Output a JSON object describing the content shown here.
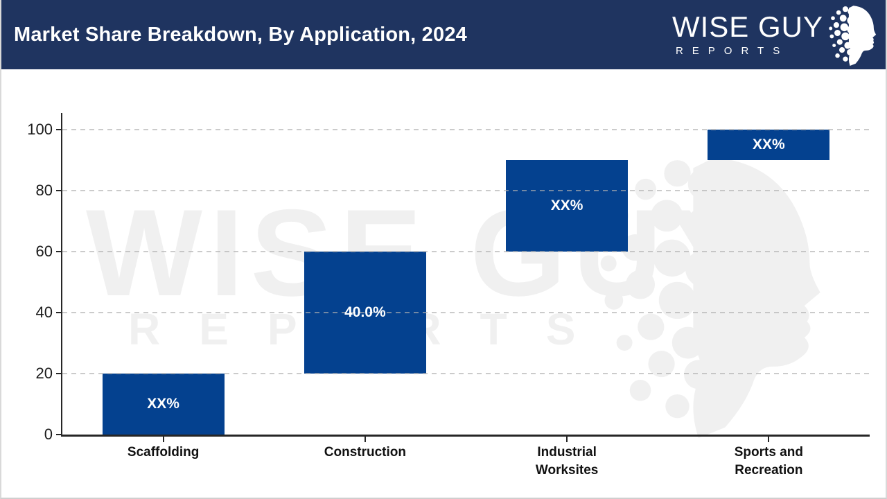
{
  "header": {
    "title": "Market Share Breakdown, By Application, 2024",
    "logo": {
      "line1": "WISE GUY",
      "line2": "REPORTS"
    }
  },
  "watermark": {
    "line1": "WISE GUY",
    "line2": "REPORTS"
  },
  "chart_data": {
    "type": "bar",
    "subtype": "waterfall",
    "title": "Market Share Breakdown, By Application, 2024",
    "categories": [
      "Scaffolding",
      "Construction",
      "Industrial Worksites",
      "Sports and Recreation"
    ],
    "category_label_lines": [
      [
        "Scaffolding"
      ],
      [
        "Construction"
      ],
      [
        "Industrial",
        "Worksites"
      ],
      [
        "Sports and",
        "Recreation"
      ]
    ],
    "bars": [
      {
        "category": "Scaffolding",
        "start": 0,
        "end": 20,
        "label": "XX%"
      },
      {
        "category": "Construction",
        "start": 20,
        "end": 60,
        "label": "40.0%"
      },
      {
        "category": "Industrial Worksites",
        "start": 60,
        "end": 90,
        "label": "XX%"
      },
      {
        "category": "Sports and Recreation",
        "start": 90,
        "end": 100,
        "label": "XX%"
      }
    ],
    "yticks": [
      0,
      20,
      40,
      60,
      80,
      100
    ],
    "ylim": [
      0,
      105
    ],
    "xlabel": "",
    "ylabel": "",
    "grid": "horizontal-dashed",
    "legend": "none",
    "bar_color": "#04418f",
    "bar_label_color": "#ffffff"
  },
  "colors": {
    "header_bg": "#1f3460",
    "bar": "#04418f",
    "axis": "#262626",
    "grid": "#cccccc",
    "watermark": "#f0f0f0",
    "page_bg": "#ffffff"
  }
}
